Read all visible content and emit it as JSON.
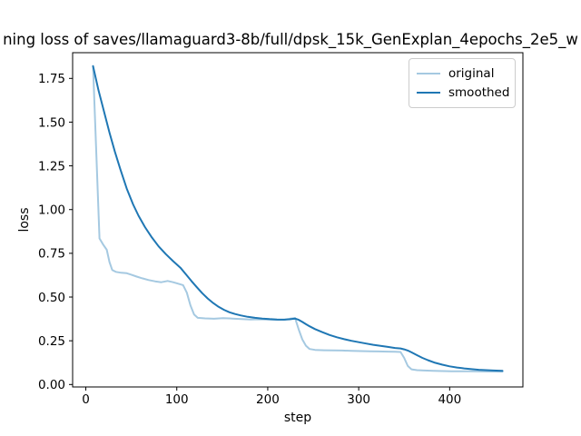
{
  "figure": {
    "background": "#ffffff"
  },
  "chart_data": {
    "type": "line",
    "title": "ning loss of saves/llamaguard3-8b/full/dpsk_15k_GenExplan_4epochs_2e5_w",
    "xlabel": "step",
    "ylabel": "loss",
    "xlim": [
      -14.5,
      480.5
    ],
    "ylim": [
      -0.014,
      1.897
    ],
    "grid": false,
    "x_ticks": [
      0,
      100,
      200,
      300,
      400
    ],
    "x_tick_labels": [
      "0",
      "100",
      "200",
      "300",
      "400"
    ],
    "y_ticks": [
      0.0,
      0.25,
      0.5,
      0.75,
      1.0,
      1.25,
      1.5,
      1.75
    ],
    "y_tick_labels": [
      "0.00",
      "0.25",
      "0.50",
      "0.75",
      "1.00",
      "1.25",
      "1.50",
      "1.75"
    ],
    "axis_color": "#000000",
    "legend": {
      "position": "upper-right",
      "entries": [
        {
          "label": "original",
          "color": "#a5c9e1"
        },
        {
          "label": "smoothed",
          "color": "#1f77b4"
        }
      ]
    },
    "series": [
      {
        "name": "original",
        "color": "#a5c9e1",
        "points": [
          [
            8,
            1.82
          ],
          [
            15,
            0.835
          ],
          [
            19,
            0.8
          ],
          [
            23,
            0.77
          ],
          [
            26,
            0.7
          ],
          [
            29,
            0.655
          ],
          [
            33,
            0.644
          ],
          [
            39,
            0.639
          ],
          [
            45,
            0.636
          ],
          [
            50,
            0.628
          ],
          [
            56,
            0.617
          ],
          [
            62,
            0.607
          ],
          [
            69,
            0.597
          ],
          [
            76,
            0.59
          ],
          [
            83,
            0.585
          ],
          [
            90,
            0.592
          ],
          [
            96,
            0.585
          ],
          [
            102,
            0.576
          ],
          [
            107,
            0.568
          ],
          [
            111,
            0.525
          ],
          [
            115,
            0.452
          ],
          [
            119,
            0.4
          ],
          [
            123,
            0.381
          ],
          [
            131,
            0.378
          ],
          [
            141,
            0.376
          ],
          [
            151,
            0.379
          ],
          [
            161,
            0.377
          ],
          [
            171,
            0.374
          ],
          [
            181,
            0.372
          ],
          [
            191,
            0.373
          ],
          [
            201,
            0.371
          ],
          [
            211,
            0.369
          ],
          [
            219,
            0.371
          ],
          [
            225,
            0.377
          ],
          [
            230,
            0.38
          ],
          [
            234,
            0.315
          ],
          [
            238,
            0.258
          ],
          [
            242,
            0.222
          ],
          [
            246,
            0.203
          ],
          [
            252,
            0.198
          ],
          [
            262,
            0.196
          ],
          [
            272,
            0.195
          ],
          [
            282,
            0.194
          ],
          [
            292,
            0.192
          ],
          [
            302,
            0.191
          ],
          [
            312,
            0.19
          ],
          [
            322,
            0.189
          ],
          [
            332,
            0.188
          ],
          [
            340,
            0.187
          ],
          [
            346,
            0.186
          ],
          [
            350,
            0.152
          ],
          [
            354,
            0.106
          ],
          [
            358,
            0.087
          ],
          [
            364,
            0.082
          ],
          [
            372,
            0.08
          ],
          [
            382,
            0.078
          ],
          [
            392,
            0.077
          ],
          [
            402,
            0.076
          ],
          [
            412,
            0.0757
          ],
          [
            422,
            0.0752
          ],
          [
            432,
            0.0748
          ],
          [
            442,
            0.0743
          ],
          [
            450,
            0.074
          ],
          [
            458,
            0.0737
          ]
        ]
      },
      {
        "name": "smoothed",
        "color": "#1f77b4",
        "points": [
          [
            8,
            1.82
          ],
          [
            14,
            1.68
          ],
          [
            20,
            1.56
          ],
          [
            26,
            1.44
          ],
          [
            32,
            1.33
          ],
          [
            38,
            1.23
          ],
          [
            45,
            1.12
          ],
          [
            52,
            1.03
          ],
          [
            58,
            0.965
          ],
          [
            65,
            0.9
          ],
          [
            72,
            0.845
          ],
          [
            80,
            0.79
          ],
          [
            88,
            0.745
          ],
          [
            96,
            0.705
          ],
          [
            104,
            0.668
          ],
          [
            110,
            0.63
          ],
          [
            116,
            0.592
          ],
          [
            122,
            0.556
          ],
          [
            128,
            0.522
          ],
          [
            134,
            0.492
          ],
          [
            140,
            0.466
          ],
          [
            146,
            0.444
          ],
          [
            152,
            0.427
          ],
          [
            158,
            0.413
          ],
          [
            164,
            0.403
          ],
          [
            170,
            0.395
          ],
          [
            178,
            0.387
          ],
          [
            186,
            0.381
          ],
          [
            194,
            0.377
          ],
          [
            202,
            0.374
          ],
          [
            210,
            0.372
          ],
          [
            218,
            0.371
          ],
          [
            224,
            0.373
          ],
          [
            230,
            0.377
          ],
          [
            234,
            0.37
          ],
          [
            238,
            0.358
          ],
          [
            242,
            0.345
          ],
          [
            246,
            0.333
          ],
          [
            252,
            0.317
          ],
          [
            260,
            0.299
          ],
          [
            268,
            0.283
          ],
          [
            276,
            0.27
          ],
          [
            284,
            0.259
          ],
          [
            292,
            0.25
          ],
          [
            300,
            0.242
          ],
          [
            308,
            0.234
          ],
          [
            316,
            0.227
          ],
          [
            324,
            0.221
          ],
          [
            332,
            0.215
          ],
          [
            340,
            0.209
          ],
          [
            346,
            0.206
          ],
          [
            350,
            0.201
          ],
          [
            354,
            0.194
          ],
          [
            358,
            0.184
          ],
          [
            364,
            0.168
          ],
          [
            370,
            0.152
          ],
          [
            376,
            0.139
          ],
          [
            384,
            0.124
          ],
          [
            392,
            0.113
          ],
          [
            400,
            0.104
          ],
          [
            408,
            0.097
          ],
          [
            416,
            0.092
          ],
          [
            424,
            0.088
          ],
          [
            432,
            0.084
          ],
          [
            440,
            0.082
          ],
          [
            448,
            0.08
          ],
          [
            458,
            0.078
          ]
        ]
      }
    ]
  }
}
